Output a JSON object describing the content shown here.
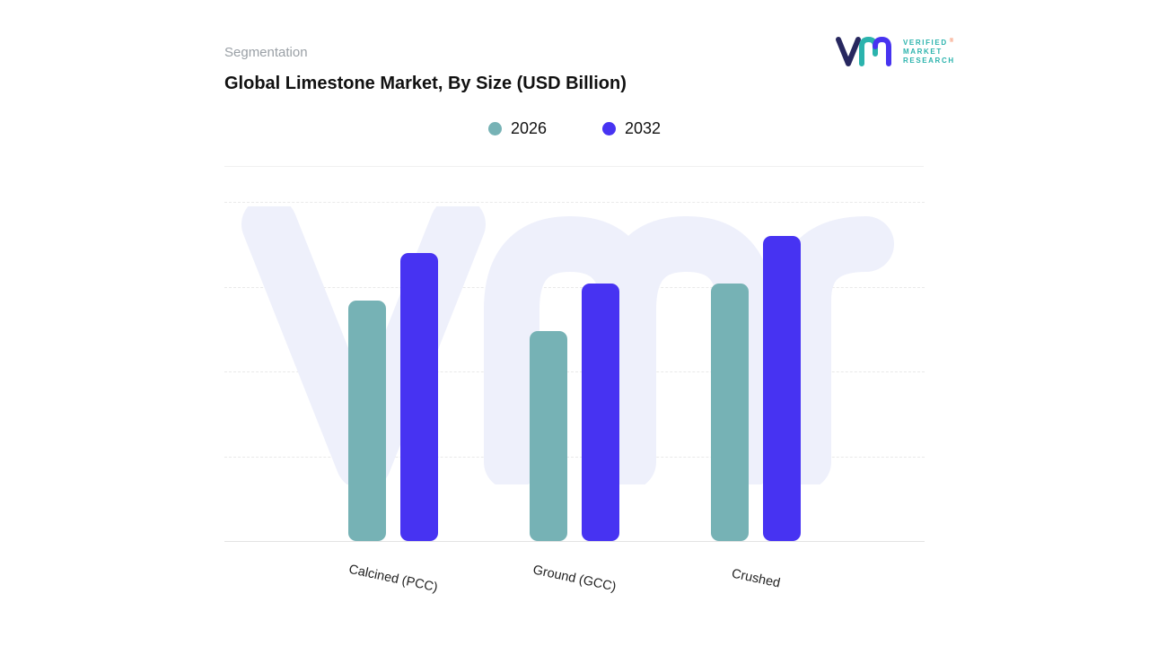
{
  "header": {
    "eyebrow": "Segmentation",
    "title": "Global Limestone Market, By Size (USD Billion)"
  },
  "logo": {
    "lines": [
      "VERIFIED",
      "MARKET",
      "RESEARCH"
    ],
    "reg_mark": "®",
    "teal": "#2bb3ad",
    "navy": "#27275f",
    "purple": "#4733f0"
  },
  "chart_data": {
    "type": "bar",
    "title": "Global Limestone Market, By Size (USD Billion)",
    "categories": [
      "Calcined (PCC)",
      "Ground (GCC)",
      "Crushed"
    ],
    "series": [
      {
        "name": "2026",
        "color": "#76b2b5",
        "values": [
          71,
          62,
          76
        ]
      },
      {
        "name": "2032",
        "color": "#4733f2",
        "values": [
          85,
          76,
          90
        ]
      }
    ],
    "xlabel": "",
    "ylabel": "",
    "ylim": [
      0,
      100
    ],
    "y_axis_labels_visible": false,
    "grid": "dashed horizontal",
    "legend_position": "top-center",
    "watermark": "VMR"
  }
}
